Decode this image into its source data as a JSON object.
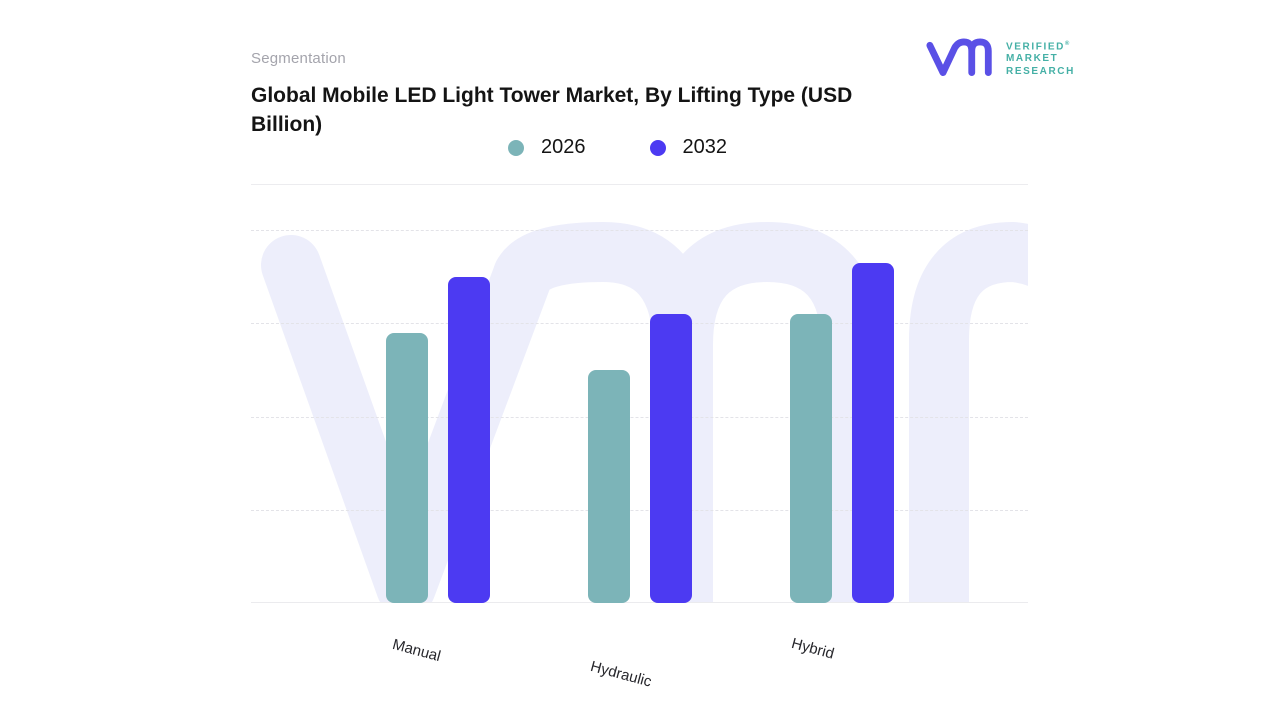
{
  "header": {
    "eyebrow": "Segmentation",
    "title": "Global Mobile LED Light Tower Market, By Lifting Type (USD Billion)"
  },
  "logo": {
    "mark": "vmr-monogram",
    "mark_color": "#5a50e6",
    "text_color": "#45b0a6",
    "lines": [
      "VERIFIED",
      "MARKET",
      "RESEARCH"
    ],
    "registered": "®"
  },
  "legend": {
    "items": [
      {
        "label": "2026",
        "color": "#7cb4b8"
      },
      {
        "label": "2032",
        "color": "#4c3af2"
      }
    ]
  },
  "chart_data": {
    "type": "bar",
    "title": "Global Mobile LED Light Tower Market, By Lifting Type (USD Billion)",
    "categories": [
      "Manual",
      "Hydraulic",
      "Hybrid"
    ],
    "series": [
      {
        "name": "2026",
        "color": "#7cb4b8",
        "values": [
          2.9,
          2.5,
          3.1
        ]
      },
      {
        "name": "2032",
        "color": "#4c3af2",
        "values": [
          3.5,
          3.1,
          3.65
        ]
      }
    ],
    "ylim": [
      0,
      4.5
    ],
    "ylabel": "",
    "xlabel": "",
    "y_tick_labels_visible": false,
    "grid": "horizontal-dashed",
    "legend_position": "top-center",
    "x_label_rotation_deg": 15
  },
  "watermark": {
    "name": "vmr-watermark",
    "color": "#edeefb"
  }
}
